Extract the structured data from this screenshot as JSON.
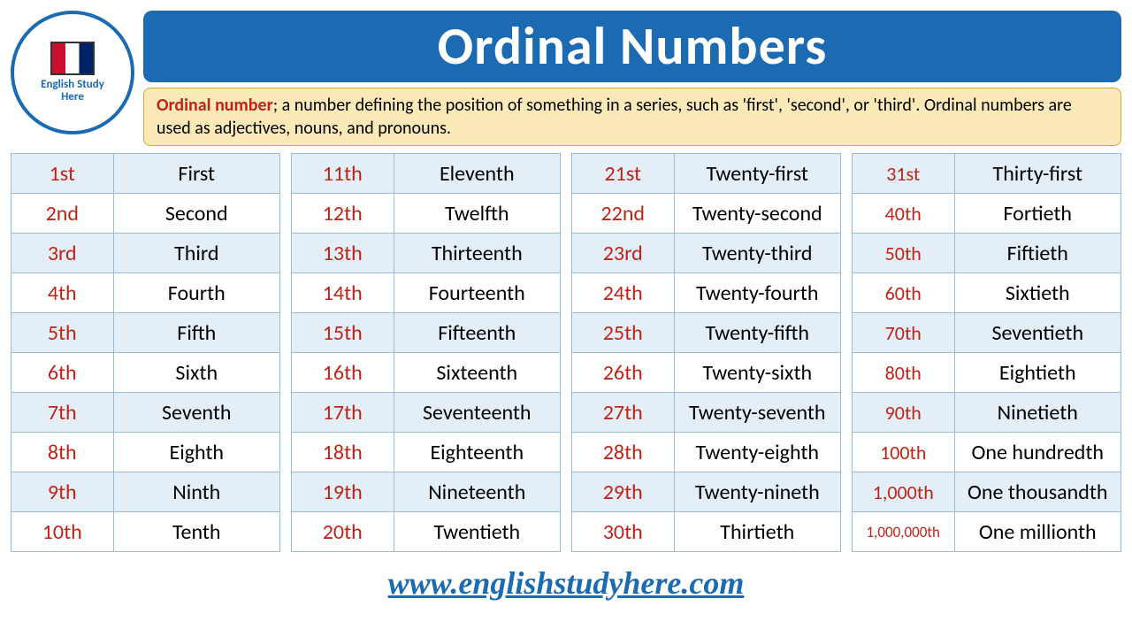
{
  "logo": {
    "line1": "English Study",
    "line2": "Here"
  },
  "title": "Ordinal Numbers",
  "definition": {
    "term": "Ordinal number",
    "text": "; a number defining the position of something in a series, such as 'first', 'second', or 'third'. Ordinal numbers are used as adjectives, nouns, and pronouns."
  },
  "columns": [
    [
      {
        "ord": "1st",
        "word": "First"
      },
      {
        "ord": "2nd",
        "word": "Second"
      },
      {
        "ord": "3rd",
        "word": "Third"
      },
      {
        "ord": "4th",
        "word": "Fourth"
      },
      {
        "ord": "5th",
        "word": "Fifth"
      },
      {
        "ord": "6th",
        "word": "Sixth"
      },
      {
        "ord": "7th",
        "word": "Seventh"
      },
      {
        "ord": "8th",
        "word": "Eighth"
      },
      {
        "ord": "9th",
        "word": "Ninth"
      },
      {
        "ord": "10th",
        "word": "Tenth"
      }
    ],
    [
      {
        "ord": "11th",
        "word": "Eleventh"
      },
      {
        "ord": "12th",
        "word": "Twelfth"
      },
      {
        "ord": "13th",
        "word": "Thirteenth"
      },
      {
        "ord": "14th",
        "word": "Fourteenth"
      },
      {
        "ord": "15th",
        "word": "Fifteenth"
      },
      {
        "ord": "16th",
        "word": "Sixteenth"
      },
      {
        "ord": "17th",
        "word": "Seventeenth"
      },
      {
        "ord": "18th",
        "word": "Eighteenth"
      },
      {
        "ord": "19th",
        "word": "Nineteenth"
      },
      {
        "ord": "20th",
        "word": "Twentieth"
      }
    ],
    [
      {
        "ord": "21st",
        "word": "Twenty-first"
      },
      {
        "ord": "22nd",
        "word": "Twenty-second"
      },
      {
        "ord": "23rd",
        "word": "Twenty-third"
      },
      {
        "ord": "24th",
        "word": "Twenty-fourth"
      },
      {
        "ord": "25th",
        "word": "Twenty-fifth"
      },
      {
        "ord": "26th",
        "word": "Twenty-sixth"
      },
      {
        "ord": "27th",
        "word": "Twenty-seventh"
      },
      {
        "ord": "28th",
        "word": "Twenty-eighth"
      },
      {
        "ord": "29th",
        "word": "Twenty-nineth"
      },
      {
        "ord": "30th",
        "word": "Thirtieth"
      }
    ],
    [
      {
        "ord": "31st",
        "word": "Thirty-first"
      },
      {
        "ord": "40th",
        "word": "Fortieth"
      },
      {
        "ord": "50th",
        "word": "Fiftieth"
      },
      {
        "ord": "60th",
        "word": "Sixtieth"
      },
      {
        "ord": "70th",
        "word": "Seventieth"
      },
      {
        "ord": "80th",
        "word": "Eightieth"
      },
      {
        "ord": "90th",
        "word": "Ninetieth"
      },
      {
        "ord": "100th",
        "word": "One hundredth"
      },
      {
        "ord": "1,000th",
        "word": "One thousandth"
      },
      {
        "ord": "1,000,000th",
        "word": "One millionth",
        "small": true
      }
    ]
  ],
  "footer": "www.englishstudyhere.com",
  "colors": {
    "brand_blue": "#1b6ab2",
    "accent_red": "#c02418",
    "definition_bg": "#fbe9b7",
    "row_alt": "#e4eef7",
    "border": "#9bbcd8"
  }
}
